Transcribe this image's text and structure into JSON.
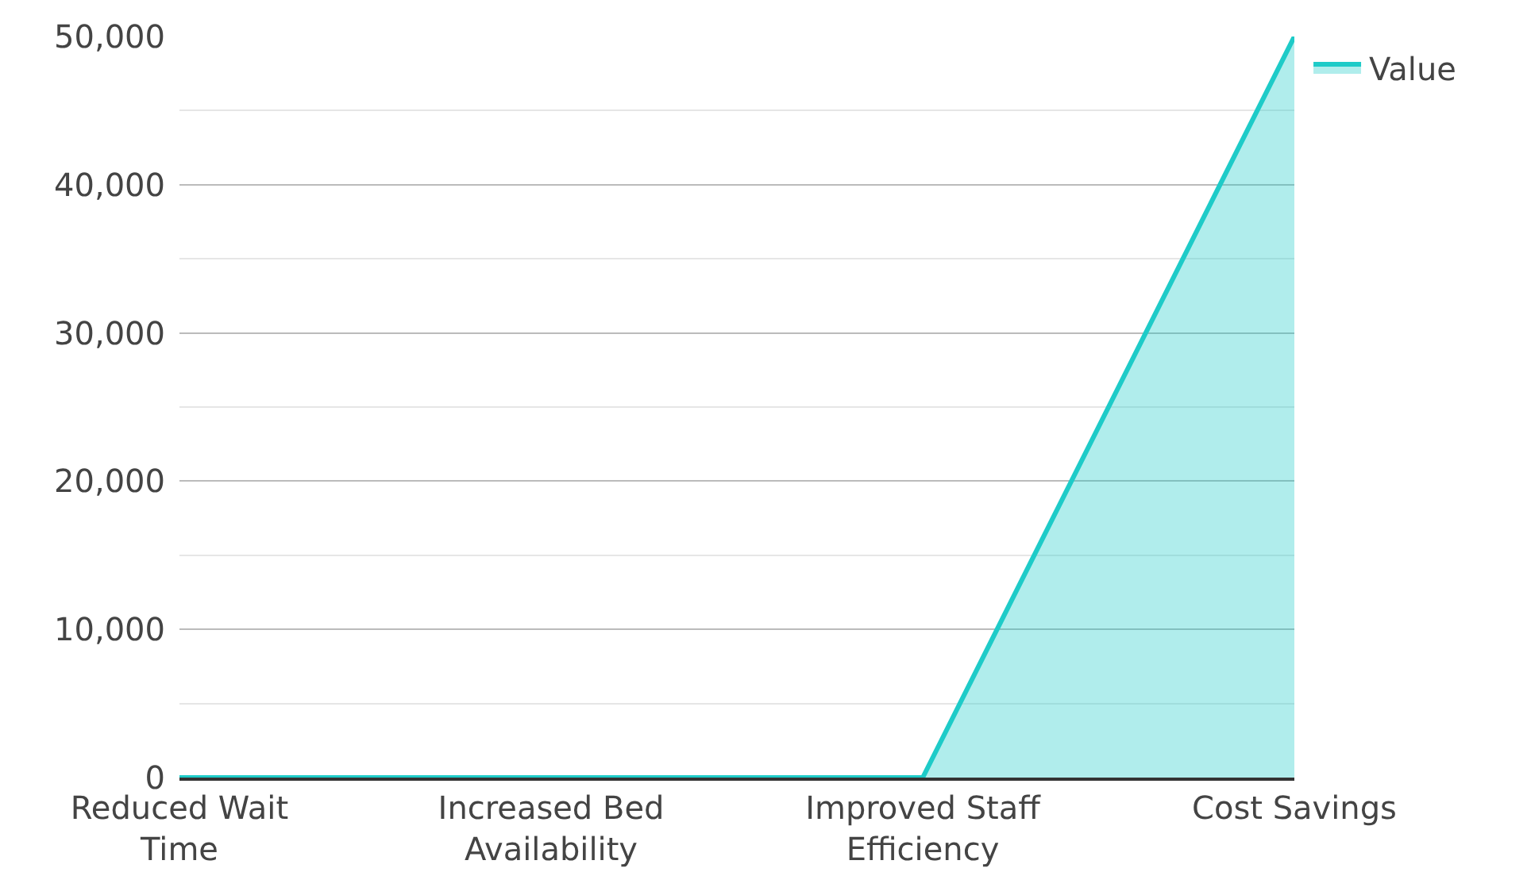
{
  "chart_data": {
    "type": "area",
    "categories": [
      "Reduced Wait Time",
      "Increased Bed Availability",
      "Improved Staff Efficiency",
      "Cost Savings"
    ],
    "series": [
      {
        "name": "Value",
        "color": "#1ecbc8",
        "values": [
          0,
          0,
          0,
          50000
        ]
      }
    ],
    "ylim": [
      0,
      50000
    ],
    "yticks": [
      0,
      {
        "value": 5000,
        "label": null
      },
      {
        "value": 10000,
        "label": "10,000"
      },
      {
        "value": 15000,
        "label": null
      },
      {
        "value": 20000,
        "label": "20,000"
      },
      {
        "value": 25000,
        "label": null
      },
      {
        "value": 30000,
        "label": "30,000"
      },
      {
        "value": 35000,
        "label": null
      },
      {
        "value": 40000,
        "label": "40,000"
      },
      {
        "value": 45000,
        "label": null
      },
      {
        "value": 50000,
        "label": "50,000"
      }
    ],
    "grid": "y",
    "legend": "top right"
  }
}
